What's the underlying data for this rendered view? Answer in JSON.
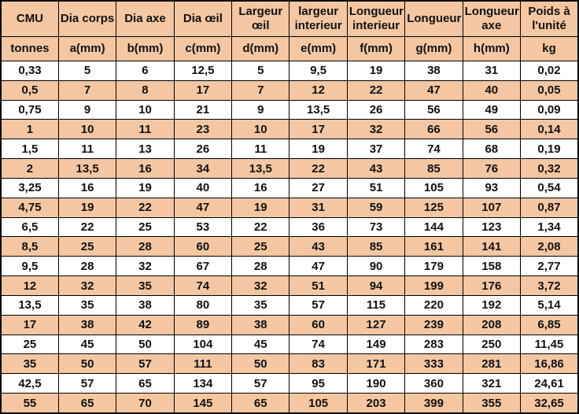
{
  "colors": {
    "header_bg": "#f4c7a2",
    "stripe_bg": "#f4c7a2",
    "row_bg": "#ffffff",
    "border": "#000000",
    "text": "#111111"
  },
  "table": {
    "columns": [
      {
        "title": "CMU",
        "unit": "tonnes"
      },
      {
        "title": "Dia corps",
        "unit": "a(mm)"
      },
      {
        "title": "Dia axe",
        "unit": "b(mm)"
      },
      {
        "title": "Dia œil",
        "unit": "c(mm)"
      },
      {
        "title": "Largeur œil",
        "unit": "d(mm)"
      },
      {
        "title": "largeur interieur",
        "unit": "e(mm)"
      },
      {
        "title": "Longueur interieur",
        "unit": "f(mm)"
      },
      {
        "title": "Longueur",
        "unit": "g(mm)"
      },
      {
        "title": "Longueur axe",
        "unit": "h(mm)"
      },
      {
        "title": "Poids à l'unité",
        "unit": "kg"
      }
    ],
    "rows": [
      [
        "0,33",
        "5",
        "6",
        "12,5",
        "5",
        "9,5",
        "19",
        "38",
        "31",
        "0,02"
      ],
      [
        "0,5",
        "7",
        "8",
        "17",
        "7",
        "12",
        "22",
        "47",
        "40",
        "0,05"
      ],
      [
        "0,75",
        "9",
        "10",
        "21",
        "9",
        "13,5",
        "26",
        "56",
        "49",
        "0,09"
      ],
      [
        "1",
        "10",
        "11",
        "23",
        "10",
        "17",
        "32",
        "66",
        "56",
        "0,14"
      ],
      [
        "1,5",
        "11",
        "13",
        "26",
        "11",
        "19",
        "37",
        "74",
        "68",
        "0,19"
      ],
      [
        "2",
        "13,5",
        "16",
        "34",
        "13,5",
        "22",
        "43",
        "85",
        "76",
        "0,32"
      ],
      [
        "3,25",
        "16",
        "19",
        "40",
        "16",
        "27",
        "51",
        "105",
        "93",
        "0,54"
      ],
      [
        "4,75",
        "19",
        "22",
        "47",
        "19",
        "31",
        "59",
        "125",
        "107",
        "0,87"
      ],
      [
        "6,5",
        "22",
        "25",
        "53",
        "22",
        "36",
        "73",
        "144",
        "123",
        "1,34"
      ],
      [
        "8,5",
        "25",
        "28",
        "60",
        "25",
        "43",
        "85",
        "161",
        "141",
        "2,08"
      ],
      [
        "9,5",
        "28",
        "32",
        "67",
        "28",
        "47",
        "90",
        "179",
        "158",
        "2,77"
      ],
      [
        "12",
        "32",
        "35",
        "74",
        "32",
        "51",
        "94",
        "199",
        "176",
        "3,72"
      ],
      [
        "13,5",
        "35",
        "38",
        "80",
        "35",
        "57",
        "115",
        "220",
        "192",
        "5,14"
      ],
      [
        "17",
        "38",
        "42",
        "89",
        "38",
        "60",
        "127",
        "239",
        "208",
        "6,85"
      ],
      [
        "25",
        "45",
        "50",
        "104",
        "45",
        "74",
        "149",
        "283",
        "250",
        "11,45"
      ],
      [
        "35",
        "50",
        "57",
        "111",
        "50",
        "83",
        "171",
        "333",
        "281",
        "16,86"
      ],
      [
        "42,5",
        "57",
        "65",
        "134",
        "57",
        "95",
        "190",
        "360",
        "321",
        "24,61"
      ],
      [
        "55",
        "65",
        "70",
        "145",
        "65",
        "105",
        "203",
        "399",
        "355",
        "32,65"
      ]
    ]
  }
}
